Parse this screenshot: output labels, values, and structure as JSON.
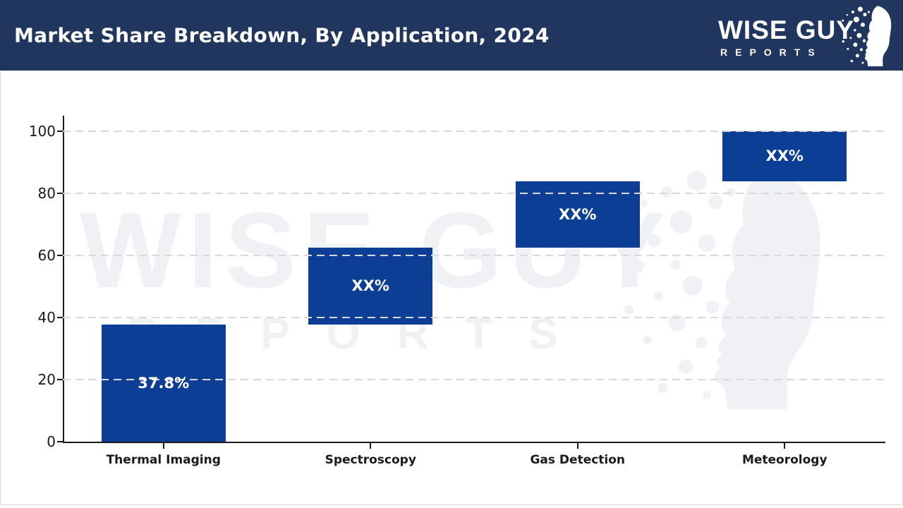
{
  "header": {
    "title": "Market Share Breakdown, By Application, 2024",
    "logo": {
      "line1": "WISE GUY",
      "line2": "REPORTS",
      "icon": "dotted-head-profile"
    }
  },
  "watermark": {
    "line1": "WISE GUY",
    "line2": "REPORTS",
    "icon": "dotted-head-profile"
  },
  "chart_data": {
    "type": "bar",
    "subtype": "floating-waterfall",
    "title": "Market Share Breakdown, By Application, 2024",
    "categories": [
      "Thermal Imaging",
      "Spectroscopy",
      "Gas Detection",
      "Meteorology"
    ],
    "segments": [
      {
        "category": "Thermal Imaging",
        "from": 0,
        "to": 37.8,
        "label": "37.8%"
      },
      {
        "category": "Spectroscopy",
        "from": 37.8,
        "to": 62.5,
        "label": "XX%"
      },
      {
        "category": "Gas Detection",
        "from": 62.5,
        "to": 83.9,
        "label": "XX%"
      },
      {
        "category": "Meteorology",
        "from": 83.9,
        "to": 100,
        "label": "XX%"
      }
    ],
    "yticks": [
      0,
      20,
      40,
      60,
      80,
      100
    ],
    "ylim": [
      0,
      105
    ],
    "xlabel": "",
    "ylabel": "",
    "grid": "dashed-horizontal-over-bars",
    "legend": "none",
    "colors": {
      "bar": "#0c3e96",
      "bar_label": "#ffffff",
      "axis": "#1a1a1a",
      "grid": "#d9d9d9",
      "header_bg": "#21365f",
      "watermark": "#f0f1f4"
    }
  }
}
